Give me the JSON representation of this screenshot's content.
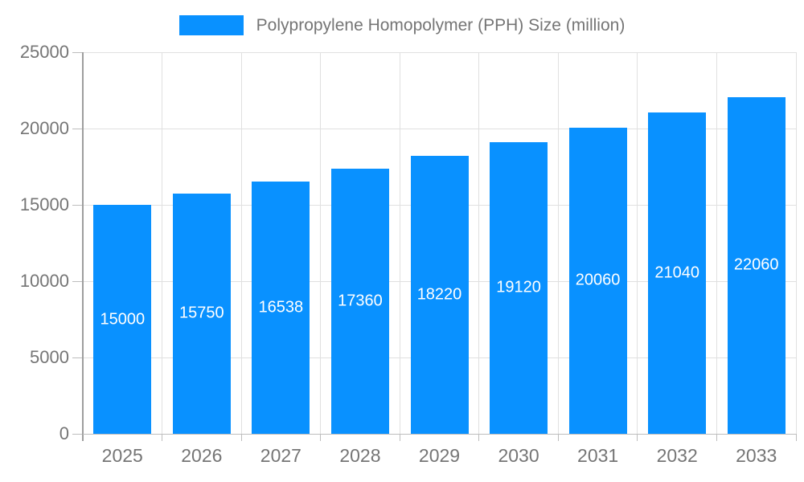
{
  "legend": {
    "label": "Polypropylene Homopolymer (PPH) Size (million)"
  },
  "chart_data": {
    "type": "bar",
    "title": "Polypropylene Homopolymer (PPH) Size (million)",
    "categories": [
      "2025",
      "2026",
      "2027",
      "2028",
      "2029",
      "2030",
      "2031",
      "2032",
      "2033"
    ],
    "values": [
      15000,
      15750,
      16538,
      17360,
      18220,
      19120,
      20060,
      21040,
      22060
    ],
    "xlabel": "",
    "ylabel": "",
    "ylim": [
      0,
      25000
    ],
    "yticks": [
      0,
      5000,
      10000,
      15000,
      20000,
      25000
    ],
    "grid": true,
    "legend_position": "top",
    "bar_value_labels": "inside-center",
    "colors": {
      "bar": "#0991ff",
      "bar_label_text": "#ffffff",
      "legend_text": "#757575",
      "axis_text": "#757575",
      "axis_line": "#9e9e9e",
      "grid_line": "#e0e0e0",
      "tick_line": "#bdbdbd",
      "background": "#ffffff"
    }
  }
}
